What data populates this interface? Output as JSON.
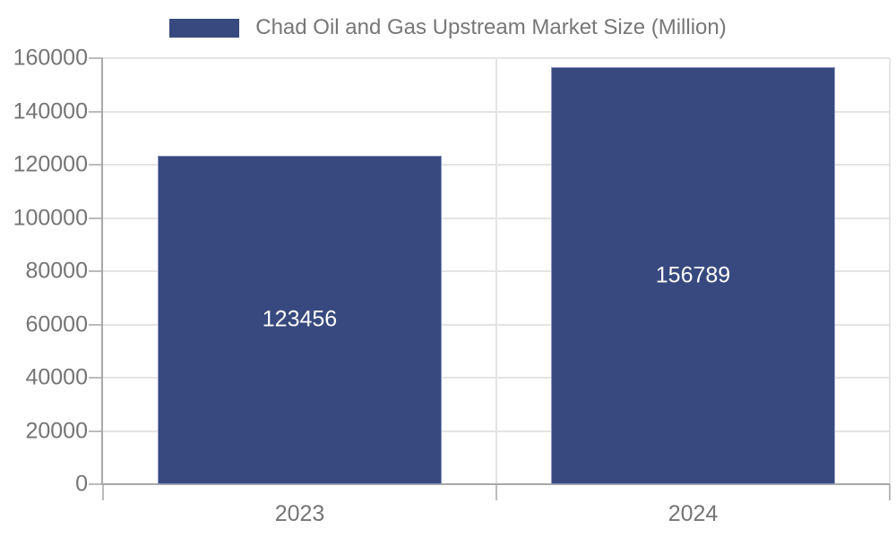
{
  "chart_data": {
    "type": "bar",
    "title": "Chad Oil and Gas Upstream Market Size (Million)",
    "categories": [
      "2023",
      "2024"
    ],
    "values": [
      123456,
      156789
    ],
    "bar_labels": [
      "123456",
      "156789"
    ],
    "xlabel": "",
    "ylabel": "",
    "ylim": [
      0,
      160000
    ],
    "yticks": [
      0,
      20000,
      40000,
      60000,
      80000,
      100000,
      120000,
      140000,
      160000
    ],
    "grid": true,
    "legend_position": "top",
    "colors": {
      "bar": "#37497E",
      "bar_border": "#8B93BF",
      "bar_label_text": "#FFFFFF",
      "axis_text": "#757575",
      "legend_text": "#777777",
      "gridline": "#E4E4E4",
      "axis_line": "#A8A8A8",
      "tick": "#BBBBBB"
    }
  }
}
